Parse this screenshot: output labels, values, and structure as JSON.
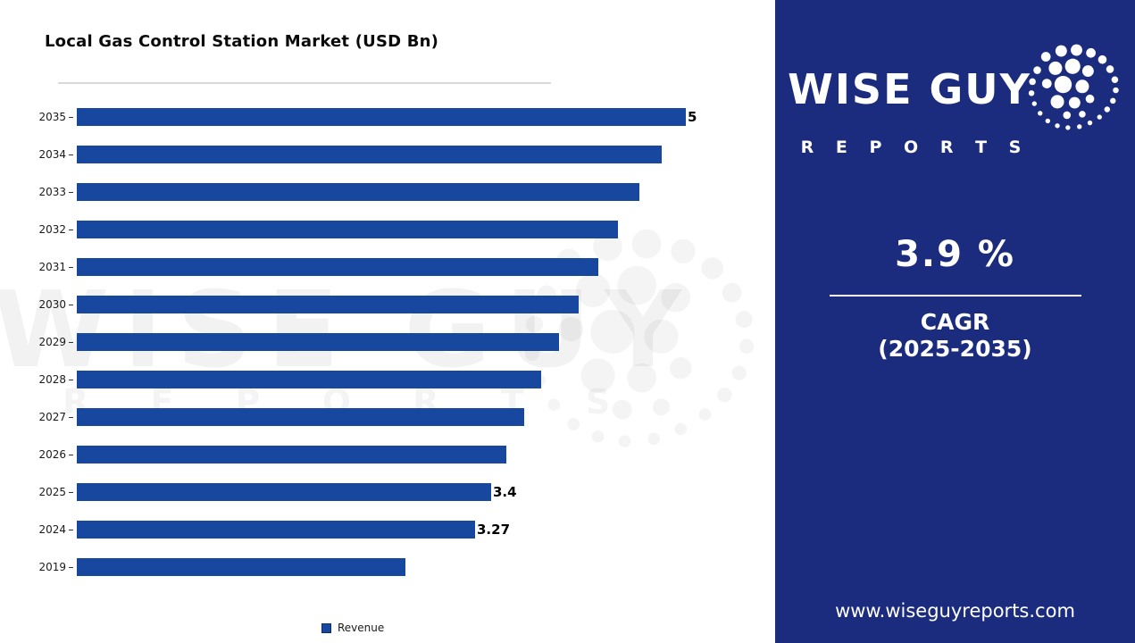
{
  "title": "Local Gas Control Station Market (USD Bn)",
  "chart_data": {
    "type": "bar",
    "orientation": "horizontal",
    "title": "Local Gas Control Station Market (USD Bn)",
    "categories": [
      "2035",
      "2034",
      "2033",
      "2032",
      "2031",
      "2030",
      "2029",
      "2028",
      "2027",
      "2026",
      "2025",
      "2024",
      "2019"
    ],
    "values": [
      5,
      4.8,
      4.62,
      4.44,
      4.28,
      4.12,
      3.96,
      3.81,
      3.67,
      3.53,
      3.4,
      3.27,
      2.7
    ],
    "value_labels": {
      "2035": "5",
      "2025": "3.4",
      "2024": "3.27"
    },
    "series_name": "Revenue",
    "xlim": [
      0,
      5.4
    ],
    "xlabel": "",
    "ylabel": "",
    "grid": false,
    "legend": [
      "Revenue"
    ],
    "legend_position": "bottom-center",
    "bar_color": "#17479e"
  },
  "watermark": {
    "line1": "WISE GUY",
    "line2": "R E P O R T S"
  },
  "sidebar": {
    "background_color": "#1b2c7e",
    "logo_line1": "WISE GUY",
    "logo_line2": "R E P O R T S",
    "cagr_value": "3.9 %",
    "cagr_label_line1": "CAGR",
    "cagr_label_line2": "(2025-2035)",
    "website": "www.wiseguyreports.com"
  }
}
